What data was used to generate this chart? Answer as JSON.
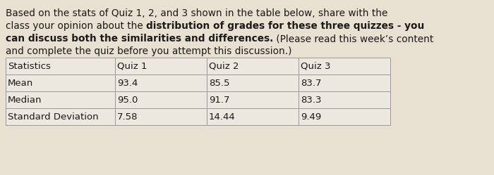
{
  "line1": "Based on the stats of Quiz 1, 2, and 3 shown in the table below, share with the",
  "line2_pre": "class your opinion about the ",
  "line2_bold": "distribution of grades for these three quizzes - you",
  "line3_bold": "can discuss both the similarities and differences.",
  "line3_post": " (Please read this week’s content",
  "line4": "and complete the quiz before you attempt this discussion.)",
  "table_headers": [
    "Statistics",
    "Quiz 1",
    "Quiz 2",
    "Quiz 3"
  ],
  "table_rows": [
    [
      "Mean",
      "93.4",
      "85.5",
      "83.7"
    ],
    [
      "Median",
      "95.0",
      "91.7",
      "83.3"
    ],
    [
      "Standard Deviation",
      "7.58",
      "14.44",
      "9.49"
    ]
  ],
  "bg_color": "#e8e0d0",
  "table_bg": "#ede8df",
  "text_color": "#1a1a1a",
  "font_size_text": 9.8,
  "font_size_table": 9.5
}
